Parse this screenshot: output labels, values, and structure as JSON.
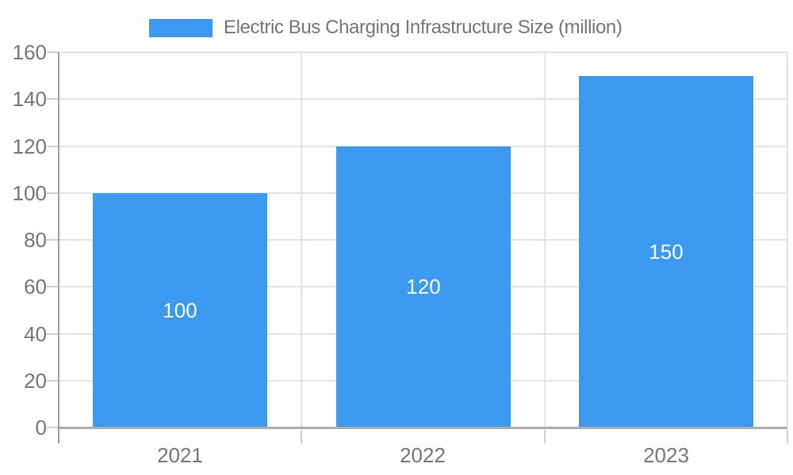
{
  "chart_data": {
    "type": "bar",
    "title": "Electric Bus Charging Infrastructure Size (million)",
    "legend_entries": [
      "Electric Bus Charging Infrastructure Size (million)"
    ],
    "legend_position": "top",
    "categories": [
      "2021",
      "2022",
      "2023"
    ],
    "series": [
      {
        "name": "Electric Bus Charging Infrastructure Size (million)",
        "values": [
          100,
          120,
          150
        ]
      }
    ],
    "data_labels": [
      "100",
      "120",
      "150"
    ],
    "xlabel": "",
    "ylabel": "",
    "ylim": [
      0,
      160
    ],
    "ytick_step": 20,
    "yticks": [
      0,
      20,
      40,
      60,
      80,
      100,
      120,
      140,
      160
    ],
    "grid": true,
    "colors": {
      "bar": "#3b99f0",
      "bar_label": "#ffffff",
      "axis_text": "#757575",
      "legend_text": "#757575",
      "grid_line": "#e4e4e4",
      "y_axis_line": "#9e9e9e",
      "x_axis_line": "#ababab",
      "tick_mark": "#cfcfcf",
      "background": "#ffffff"
    }
  }
}
